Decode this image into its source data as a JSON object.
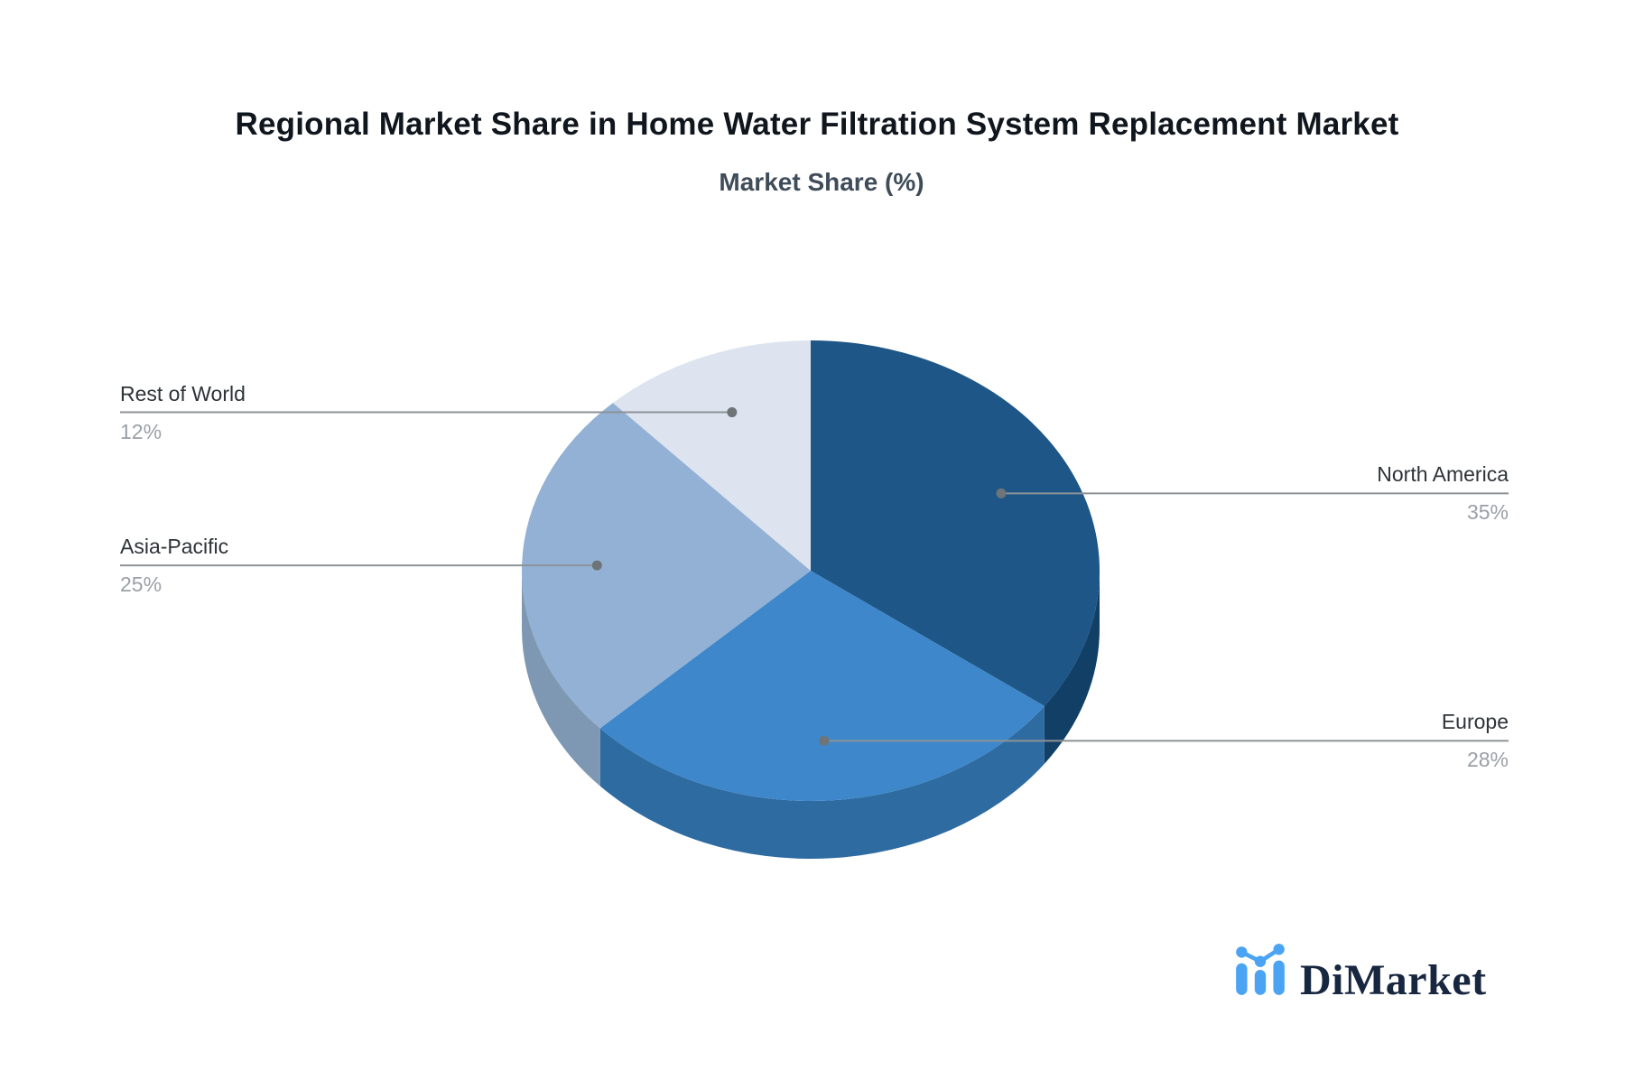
{
  "title": "Regional Market Share in Home Water Filtration System Replacement Market",
  "subtitle": "Market Share (%)",
  "chart_data": {
    "type": "pie",
    "style": "3d",
    "title": "Regional Market Share in Home Water Filtration System Replacement Market",
    "subtitle": "Market Share (%)",
    "unit": "%",
    "start_at": "top",
    "order": "clockwise",
    "legend": "none",
    "label_style": "callout-lines-with-dots",
    "categories": [
      "North America",
      "Europe",
      "Asia-Pacific",
      "Rest of World"
    ],
    "values": [
      35,
      28,
      25,
      12
    ],
    "slices": [
      {
        "name": "North America",
        "value": 35,
        "pct": "35%",
        "color": "#1d5687",
        "side_color": "#123f66",
        "label_side": "right"
      },
      {
        "name": "Europe",
        "value": 28,
        "pct": "28%",
        "color": "#3d87ca",
        "side_color": "#2e6ba1",
        "label_side": "right"
      },
      {
        "name": "Asia-Pacific",
        "value": 25,
        "pct": "25%",
        "color": "#92b1d5",
        "side_color": "#7e97b2",
        "label_side": "left"
      },
      {
        "name": "Rest of World",
        "value": 12,
        "pct": "12%",
        "color": "#dde4ef",
        "side_color": "#c6d0de",
        "label_side": "left"
      }
    ],
    "callout_line_color": "#8d9297",
    "callout_dot_color": "#6f7478",
    "label_text_color": "#2e3338",
    "pct_text_color": "#9aa0a6"
  },
  "logo": {
    "brand": "DiMarket",
    "icon": "bar-line-chart-icon",
    "icon_color": "#4aa3f3",
    "text_color": "#182740"
  }
}
